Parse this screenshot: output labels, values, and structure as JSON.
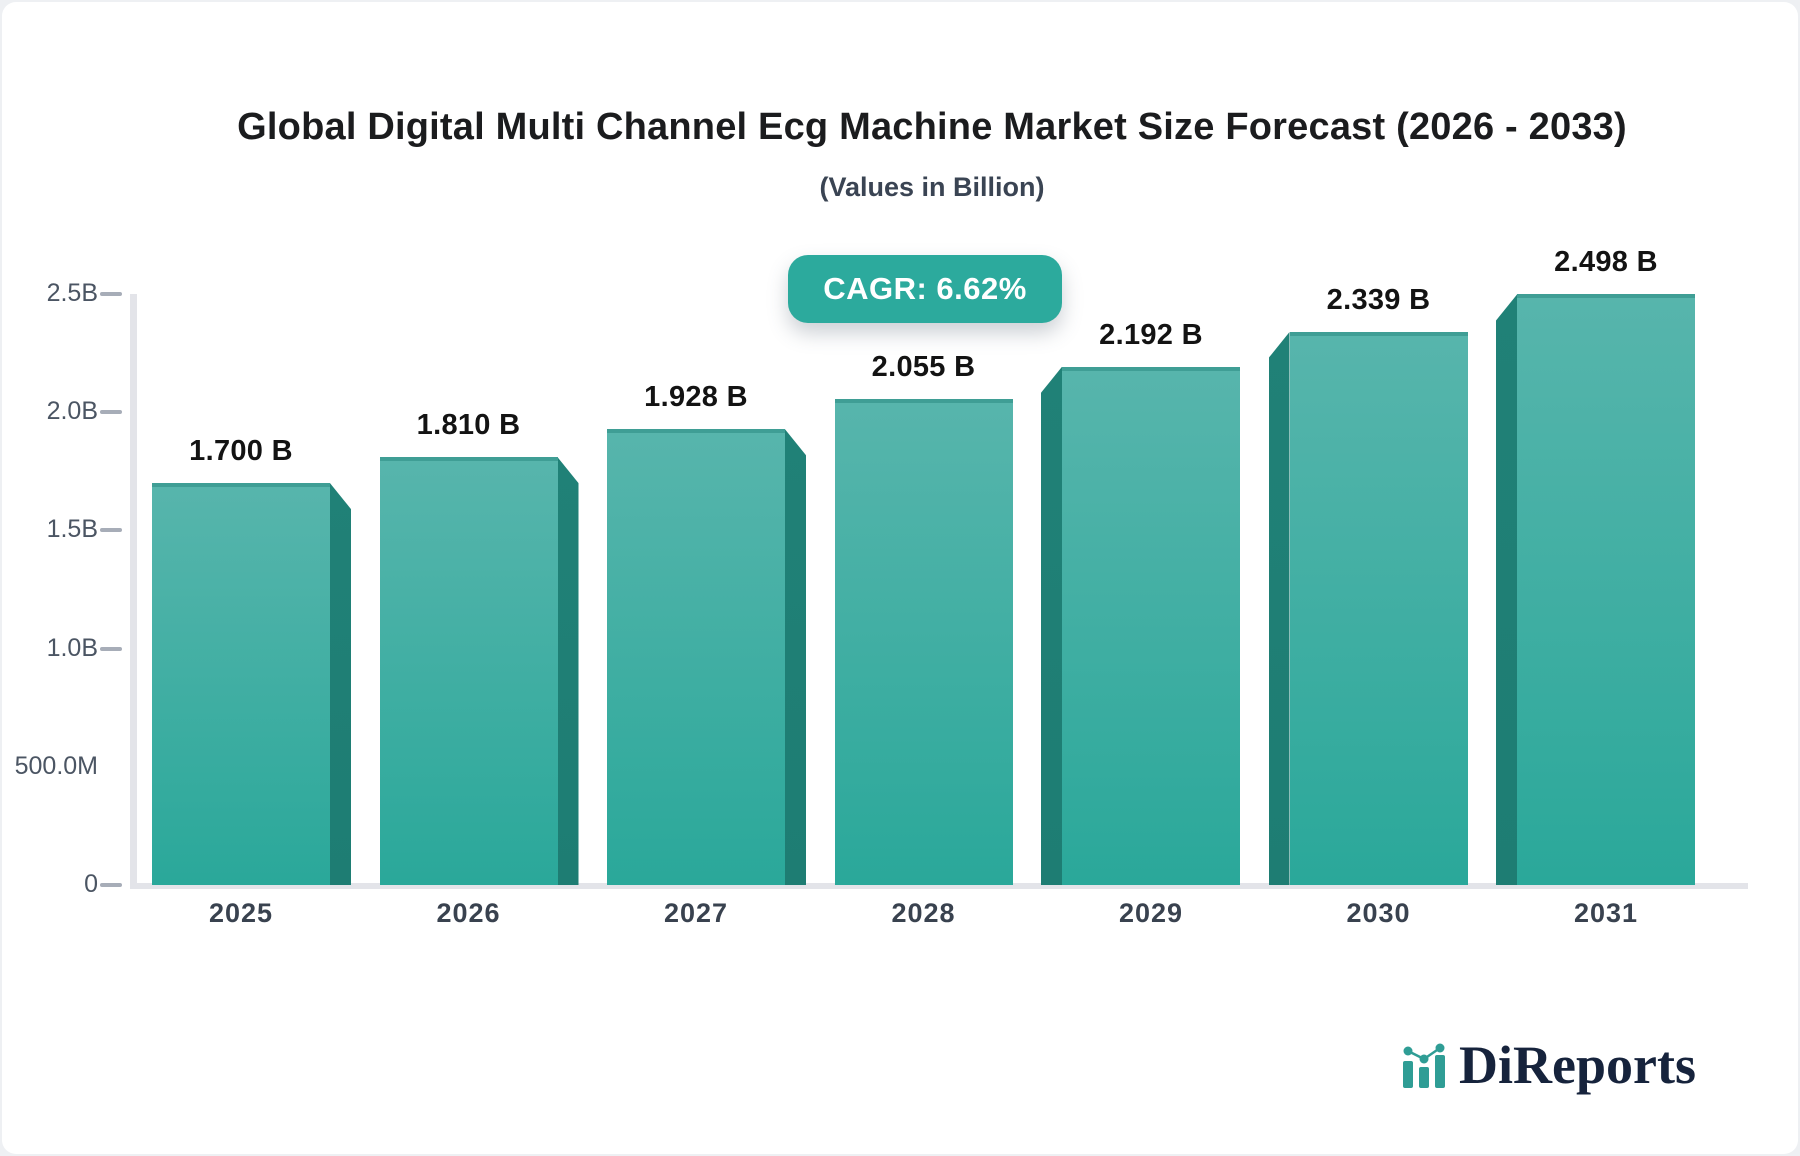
{
  "title": "Global Digital Multi Channel Ecg Machine Market Size Forecast (2026 - 2033)",
  "subtitle": "(Values in Billion)",
  "badge": {
    "label": "CAGR: 6.62%"
  },
  "logo": {
    "text": "DiReports",
    "icon": "mini-bar-chart-sparkline"
  },
  "chart_data": {
    "type": "bar",
    "title": "Global Digital Multi Channel Ecg Machine Market Size Forecast (2026 - 2033)",
    "subtitle": "(Values in Billion)",
    "unit": "Billion USD",
    "cagr_percent": 6.62,
    "categories": [
      "2025",
      "2026",
      "2027",
      "2028",
      "2029",
      "2030",
      "2031"
    ],
    "values": [
      1.7,
      1.81,
      1.928,
      2.055,
      2.192,
      2.339,
      2.498
    ],
    "value_labels": [
      "1.700 B",
      "1.810 B",
      "1.928 B",
      "2.055 B",
      "2.192 B",
      "2.339 B",
      "2.498 B"
    ],
    "xlabel": "",
    "ylabel": "",
    "ylim": [
      0,
      2.5
    ],
    "yticks": [
      {
        "label": "2.5B",
        "value": 2.5,
        "dash": true
      },
      {
        "label": "2.0B",
        "value": 2.0,
        "dash": true
      },
      {
        "label": "1.5B",
        "value": 1.5,
        "dash": true
      },
      {
        "label": "1.0B",
        "value": 1.0,
        "dash": true
      },
      {
        "label": "500.0M",
        "value": 0.5,
        "dash": false
      },
      {
        "label": "0",
        "value": 0.0,
        "dash": true
      }
    ],
    "grid": false,
    "legend": null,
    "colors": {
      "accent": "#2caa9d",
      "bar_face_top": "#57b5ac",
      "bar_face_bottom": "#2aa89a",
      "bar_side": "#1e7d73",
      "bar_top_edge": "#3f9e95",
      "axis": "#e3e4e9",
      "tick_label": "#4b5563",
      "x_label": "#39424f",
      "value_label": "#131313",
      "logo_navy": "#16233c",
      "logo_teal": "#2f9d95"
    }
  }
}
